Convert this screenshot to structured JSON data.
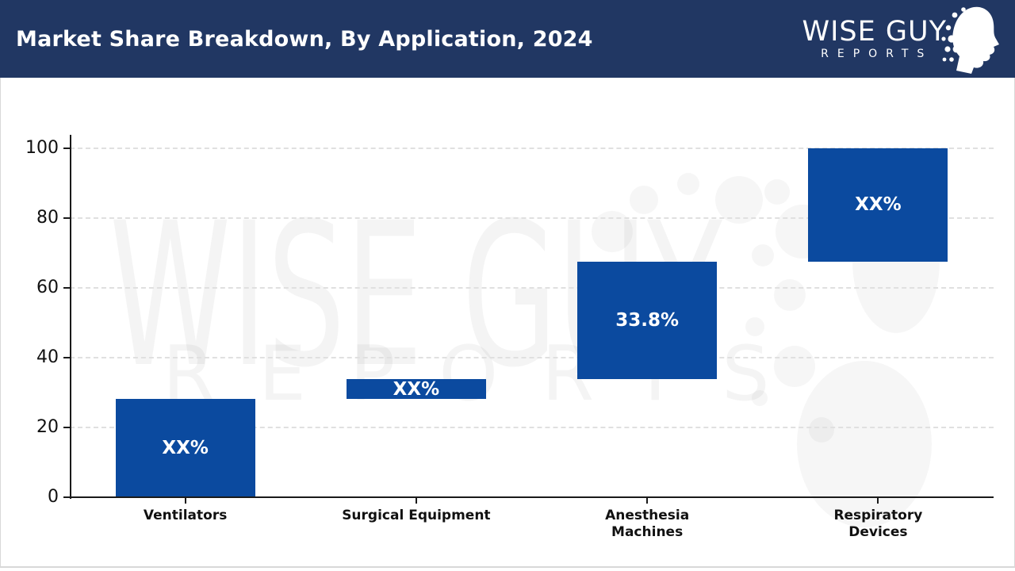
{
  "header": {
    "title": "Market Share Breakdown, By Application, 2024",
    "bg_color": "#213763",
    "logo": {
      "line1": "WISE GUY",
      "line2": "REPORTS",
      "icon": "face-profile-dots-icon",
      "color": "#ffffff"
    }
  },
  "watermark": {
    "line1": "WISE GUY",
    "line2": "REPORTS"
  },
  "chart_data": {
    "type": "bar",
    "subtype": "floating-waterfall",
    "title": "Market Share Breakdown, By Application, 2024",
    "categories": [
      "Ventilators",
      "Surgical Equipment",
      "Anesthesia Machines",
      "Respiratory Devices"
    ],
    "bars": [
      {
        "category": "Ventilators",
        "lines": "Ventilators",
        "start": 0,
        "end": 28.2,
        "value_pct": 28.2,
        "label": "XX%"
      },
      {
        "category": "Surgical Equipment",
        "lines": "Surgical Equipment",
        "start": 28.2,
        "end": 33.8,
        "value_pct": 5.6,
        "label": "XX%"
      },
      {
        "category": "Anesthesia Machines",
        "lines": "Anesthesia\nMachines",
        "start": 33.8,
        "end": 67.6,
        "value_pct": 33.8,
        "label": "33.8%"
      },
      {
        "category": "Respiratory Devices",
        "lines": "Respiratory\nDevices",
        "start": 67.6,
        "end": 100,
        "value_pct": 32.4,
        "label": "XX%"
      }
    ],
    "ylim": [
      0,
      100
    ],
    "yticks": [
      0,
      20,
      40,
      60,
      80,
      100
    ],
    "grid": "horizontal-dashed",
    "legend": "none",
    "bar_color": "#0b4a9f",
    "bar_label_color": "#ffffff",
    "axis_color": "#1a1a1a",
    "gridline_color": "#e0e0e0"
  }
}
